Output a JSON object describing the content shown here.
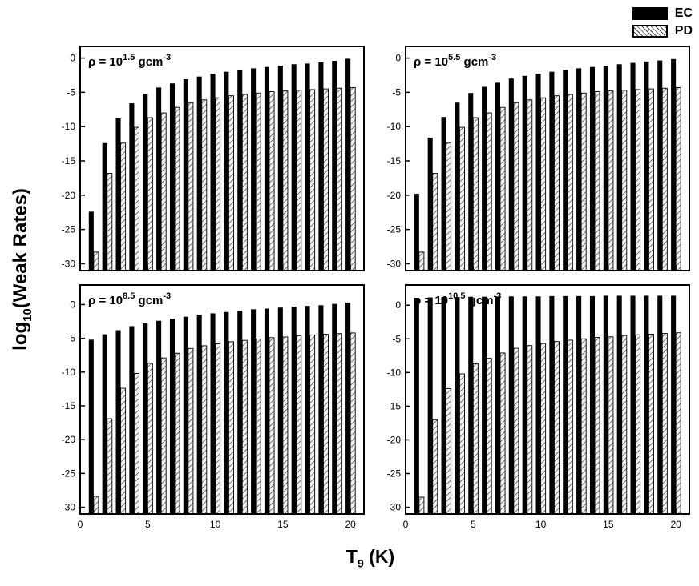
{
  "figure": {
    "y_axis_label": {
      "base": "log",
      "sub": "10",
      "rest": "(Weak Rates)"
    },
    "x_axis_label": {
      "base": "T",
      "sub": "9",
      "rest": " (K)"
    },
    "legend": [
      {
        "label": "EC",
        "style": "solid",
        "color": "#000000"
      },
      {
        "label": "PD",
        "style": "hatched",
        "color": "#000000"
      }
    ],
    "colors": {
      "ec_bar": "#000000",
      "pd_bar_fill": "#f2f2f2",
      "pd_hatch": "#333333",
      "axis": "#000000"
    }
  },
  "chart_data": [
    {
      "type": "bar",
      "title_parts": {
        "base": "ρ = 10",
        "exponent": "1.5",
        "unit": " gcm",
        "unit_exponent": "-3"
      },
      "x": [
        1,
        2,
        3,
        4,
        5,
        6,
        7,
        8,
        9,
        10,
        11,
        12,
        13,
        14,
        15,
        16,
        17,
        18,
        19,
        20
      ],
      "series": [
        {
          "name": "EC",
          "values": [
            -22.4,
            -12.4,
            -8.8,
            -6.6,
            -5.2,
            -4.3,
            -3.7,
            -3.1,
            -2.7,
            -2.3,
            -2.0,
            -1.8,
            -1.5,
            -1.3,
            -1.1,
            -0.9,
            -0.8,
            -0.6,
            -0.4,
            -0.1
          ]
        },
        {
          "name": "PD",
          "values": [
            -28.3,
            -16.8,
            -12.4,
            -10.1,
            -8.7,
            -8.0,
            -7.2,
            -6.5,
            -6.1,
            -5.8,
            -5.5,
            -5.3,
            -5.1,
            -4.9,
            -4.8,
            -4.7,
            -4.6,
            -4.5,
            -4.4,
            -4.3
          ]
        }
      ],
      "xlim": [
        0,
        21
      ],
      "ylim": [
        -31,
        1.7
      ],
      "x_ticks": [
        0,
        5,
        10,
        15,
        20
      ],
      "y_ticks": [
        0,
        -5,
        -10,
        -15,
        -20,
        -25,
        -30
      ],
      "show_x_tick_labels": false,
      "grid": false
    },
    {
      "type": "bar",
      "title_parts": {
        "base": "ρ = 10",
        "exponent": "5.5",
        "unit": " gcm",
        "unit_exponent": "-3"
      },
      "x": [
        1,
        2,
        3,
        4,
        5,
        6,
        7,
        8,
        9,
        10,
        11,
        12,
        13,
        14,
        15,
        16,
        17,
        18,
        19,
        20
      ],
      "series": [
        {
          "name": "EC",
          "values": [
            -19.8,
            -11.6,
            -8.6,
            -6.5,
            -5.1,
            -4.2,
            -3.6,
            -3.0,
            -2.6,
            -2.3,
            -2.0,
            -1.7,
            -1.5,
            -1.3,
            -1.1,
            -0.9,
            -0.7,
            -0.5,
            -0.35,
            -0.15
          ]
        },
        {
          "name": "PD",
          "values": [
            -28.3,
            -16.8,
            -12.4,
            -10.1,
            -8.7,
            -8.0,
            -7.2,
            -6.5,
            -6.1,
            -5.8,
            -5.5,
            -5.3,
            -5.1,
            -4.9,
            -4.8,
            -4.7,
            -4.6,
            -4.5,
            -4.4,
            -4.3
          ]
        }
      ],
      "xlim": [
        0,
        21
      ],
      "ylim": [
        -31,
        1.7
      ],
      "x_ticks": [
        0,
        5,
        10,
        15,
        20
      ],
      "y_ticks": [
        0,
        -5,
        -10,
        -15,
        -20,
        -25,
        -30
      ],
      "show_x_tick_labels": false,
      "grid": false
    },
    {
      "type": "bar",
      "title_parts": {
        "base": "ρ = 10",
        "exponent": "8.5",
        "unit": " gcm",
        "unit_exponent": "-3"
      },
      "x": [
        1,
        2,
        3,
        4,
        5,
        6,
        7,
        8,
        9,
        10,
        11,
        12,
        13,
        14,
        15,
        16,
        17,
        18,
        19,
        20
      ],
      "series": [
        {
          "name": "EC",
          "values": [
            -5.2,
            -4.4,
            -3.8,
            -3.2,
            -2.8,
            -2.4,
            -2.1,
            -1.8,
            -1.5,
            -1.3,
            -1.1,
            -0.9,
            -0.7,
            -0.6,
            -0.45,
            -0.3,
            -0.2,
            -0.1,
            0.1,
            0.3
          ]
        },
        {
          "name": "PD",
          "values": [
            -28.4,
            -16.9,
            -12.4,
            -10.2,
            -8.7,
            -7.9,
            -7.2,
            -6.5,
            -6.1,
            -5.8,
            -5.5,
            -5.3,
            -5.1,
            -4.9,
            -4.8,
            -4.6,
            -4.5,
            -4.4,
            -4.3,
            -4.2
          ]
        }
      ],
      "xlim": [
        0,
        21
      ],
      "ylim": [
        -31,
        2.9
      ],
      "x_ticks": [
        0,
        5,
        10,
        15,
        20
      ],
      "y_ticks": [
        0,
        -5,
        -10,
        -15,
        -20,
        -25,
        -30
      ],
      "show_x_tick_labels": true,
      "grid": false
    },
    {
      "type": "bar",
      "title_parts": {
        "base": "ρ = 10",
        "exponent": "10.5",
        "unit": " gcm",
        "unit_exponent": "-3"
      },
      "x": [
        1,
        2,
        3,
        4,
        5,
        6,
        7,
        8,
        9,
        10,
        11,
        12,
        13,
        14,
        15,
        16,
        17,
        18,
        19,
        20
      ],
      "series": [
        {
          "name": "EC",
          "values": [
            1.1,
            1.15,
            1.2,
            1.2,
            1.25,
            1.25,
            1.3,
            1.3,
            1.3,
            1.3,
            1.35,
            1.35,
            1.35,
            1.35,
            1.4,
            1.4,
            1.4,
            1.4,
            1.4,
            1.4
          ]
        },
        {
          "name": "PD",
          "values": [
            -28.5,
            -17.0,
            -12.4,
            -10.2,
            -8.7,
            -7.9,
            -7.1,
            -6.4,
            -6.0,
            -5.7,
            -5.4,
            -5.2,
            -5.0,
            -4.8,
            -4.7,
            -4.5,
            -4.4,
            -4.3,
            -4.2,
            -4.1
          ]
        }
      ],
      "xlim": [
        0,
        21
      ],
      "ylim": [
        -31,
        3.0
      ],
      "x_ticks": [
        0,
        5,
        10,
        15,
        20
      ],
      "y_ticks": [
        0,
        -5,
        -10,
        -15,
        -20,
        -25,
        -30
      ],
      "show_x_tick_labels": true,
      "grid": false
    }
  ]
}
